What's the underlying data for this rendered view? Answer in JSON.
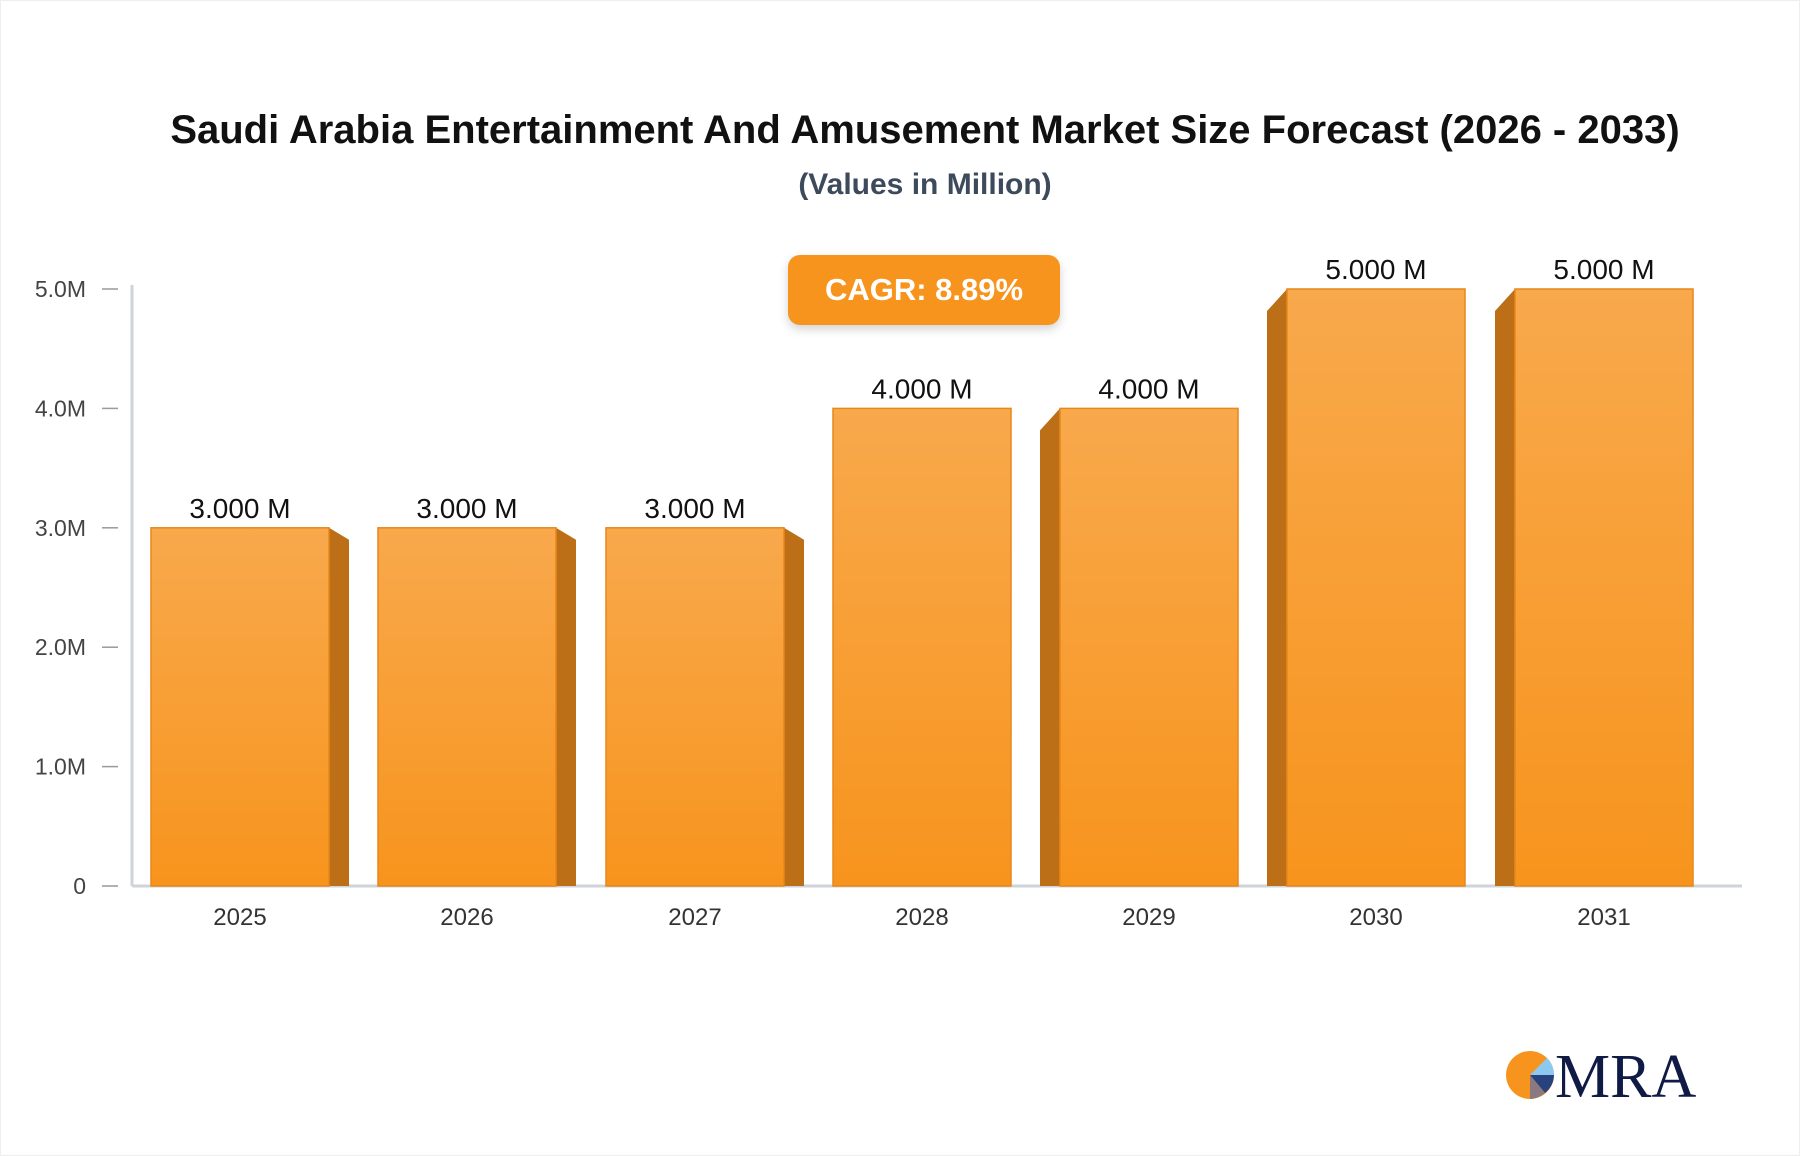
{
  "chart_data": {
    "type": "bar",
    "title": "Saudi Arabia Entertainment And Amusement Market Size Forecast (2026 - 2033)",
    "subtitle": "(Values in Million)",
    "categories": [
      "2025",
      "2026",
      "2027",
      "2028",
      "2029",
      "2030",
      "2031"
    ],
    "values": [
      3.0,
      3.0,
      3.0,
      4.0,
      4.0,
      5.0,
      5.0
    ],
    "data_labels": [
      "3.000 M",
      "3.000 M",
      "3.000 M",
      "4.000 M",
      "4.000 M",
      "5.000 M",
      "5.000 M"
    ],
    "y_ticks": [
      0,
      1,
      2,
      3,
      4,
      5
    ],
    "y_tick_labels": [
      "0",
      "1.0M",
      "2.0M",
      "3.0M",
      "4.0M",
      "5.0M"
    ],
    "ylim": [
      0,
      5
    ],
    "xlabel": "",
    "ylabel": "",
    "grid": false,
    "annotation": "CAGR: 8.89%",
    "colors": {
      "bar": "#f7941d",
      "bar_top": "#f8a94c",
      "bar_side": "#bd6f17",
      "axis": "#cfd3da",
      "label": "#111111"
    }
  },
  "logo": {
    "text": "MRA"
  }
}
